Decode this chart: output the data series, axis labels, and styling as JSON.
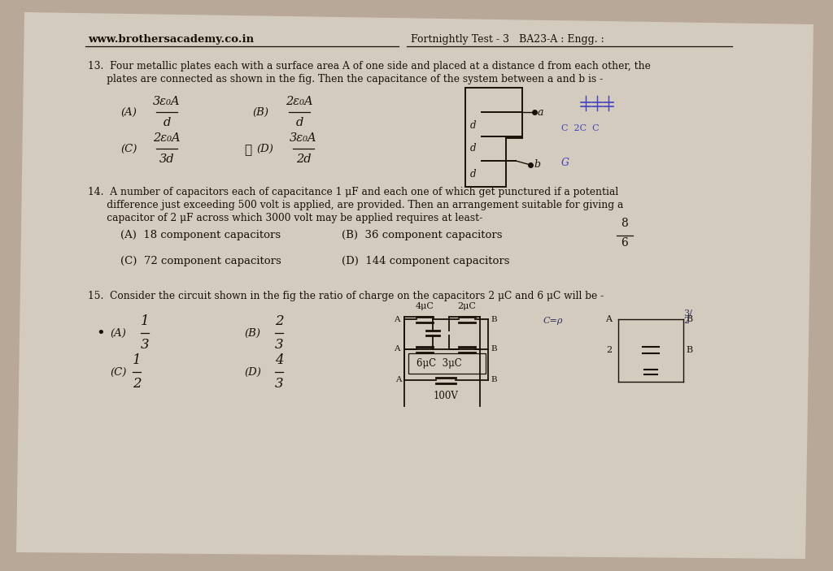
{
  "bg_color": "#b8a898",
  "page_color": "#d4cbbf",
  "text_color": "#1a1008",
  "website": "www.brothersacademy.co.in",
  "header_right": "Fortnightly Test - 3   BA23-A : Engg. :",
  "q13_line1": "13.  Four metallic plates each with a surface area A of one side and placed at a distance d from each other, the",
  "q13_line2": "      plates are connected as shown in the fig. Then the capacitance of the system between a and b is -",
  "q13_optA_label": "(A)",
  "q13_optA_num": "3ε₀A",
  "q13_optA_den": "d",
  "q13_optB_label": "(B)",
  "q13_optB_num": "2ε₀A",
  "q13_optB_den": "d",
  "q13_optC_label": "(C)",
  "q13_optC_num": "2ε₀A",
  "q13_optC_den": "3d",
  "q13_optD_label": "(D)",
  "q13_optD_num": "3ε₀A",
  "q13_optD_den": "2d",
  "q14_line1": "14.  A number of capacitors each of capacitance 1 μF and each one of which get punctured if a potential",
  "q14_line2": "      difference just exceeding 500 volt is applied, are provided. Then an arrangement suitable for giving a",
  "q14_line3": "      capacitor of 2 μF across which 3000 volt may be applied requires at least-",
  "q14_optA": "(A)  18 component capacitors",
  "q14_optB": "(B)  36 component capacitors",
  "q14_optC": "(C)  72 component capacitors",
  "q14_optD": "(D)  144 component capacitors",
  "q15_line1": "15.  Consider the circuit shown in the fig the ratio of charge on the capacitors 2 μC and 6 μC will be -",
  "q15_optA_label": "(A)",
  "q15_optA_num": "1",
  "q15_optA_den": "3",
  "q15_optB_label": "(B)",
  "q15_optB_num": "2",
  "q15_optB_den": "3",
  "q15_optC_label": "(C)",
  "q15_optC_num": "1",
  "q15_optC_den": "2",
  "q15_optD_label": "(D)",
  "q15_optD_num": "4",
  "q15_optD_den": "3"
}
